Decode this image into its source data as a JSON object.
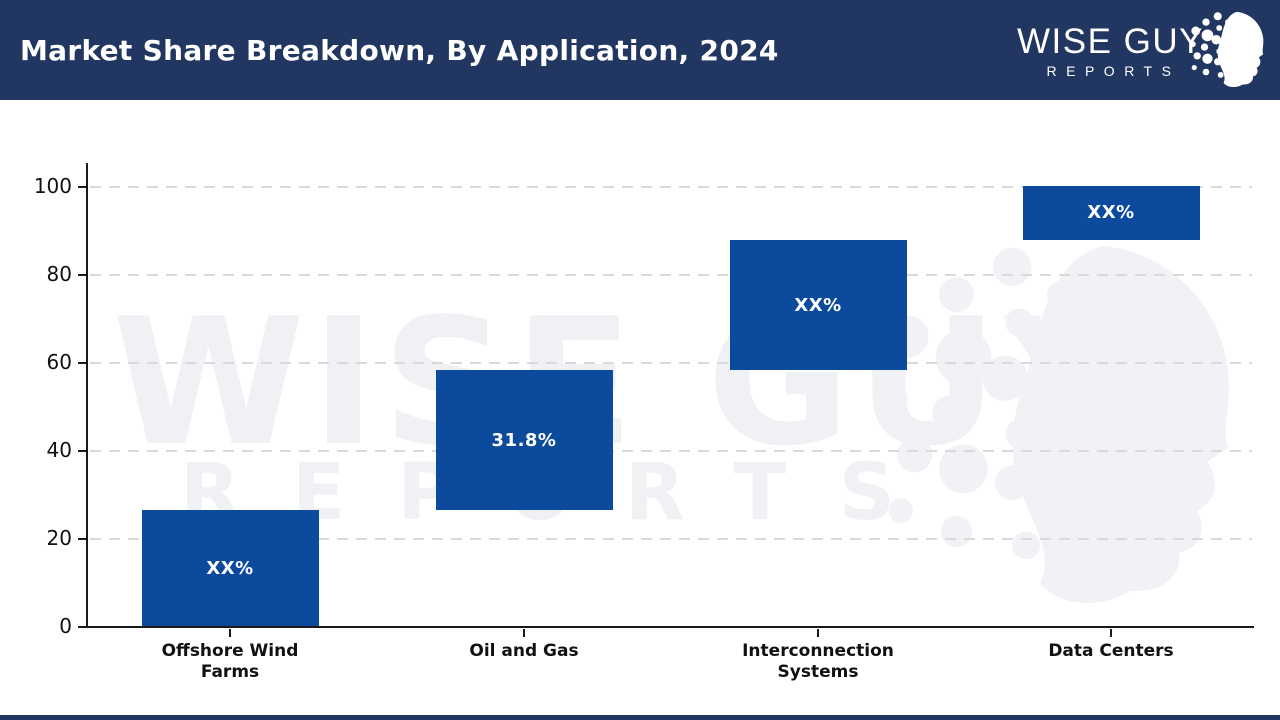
{
  "header": {
    "title": "Market Share Breakdown, By Application, 2024",
    "logo": {
      "wordmark": "WISE GUY",
      "tagline": "REPORTS",
      "icon": "dotted-face-profile"
    }
  },
  "watermark": {
    "wordmark": "WISE GUY",
    "tagline": "REPORTS"
  },
  "colors": {
    "header_bg": "#213761",
    "bar_fill": "#0c4a9e",
    "bar_label": "#ffffff",
    "axis": "#1a1a1a",
    "tick_label": "#111111",
    "gridline": "#d9d9d9",
    "watermark": "#f0f1f4",
    "background": "#ffffff"
  },
  "chart_data": {
    "type": "bar",
    "variant": "floating-segment-waterfall",
    "title": "Market Share Breakdown, By Application, 2024",
    "xlabel": "",
    "ylabel": "",
    "categories": [
      [
        "Offshore Wind",
        "Farms"
      ],
      [
        "Oil and Gas"
      ],
      [
        "Interconnection",
        "Systems"
      ],
      [
        "Data Centers"
      ]
    ],
    "segments": [
      {
        "category": "Offshore Wind Farms",
        "start": 0,
        "end": 26.5,
        "label": "XX%"
      },
      {
        "category": "Oil and Gas",
        "start": 26.5,
        "end": 58.3,
        "label": "31.8%"
      },
      {
        "category": "Interconnection Systems",
        "start": 58.3,
        "end": 88.0,
        "label": "XX%"
      },
      {
        "category": "Data Centers",
        "start": 88.0,
        "end": 100.2,
        "label": "XX%"
      }
    ],
    "yticks": [
      0,
      20,
      40,
      60,
      80,
      100
    ],
    "ylim": [
      0,
      105.5
    ],
    "grid": "horizontal-dashed",
    "legend": "none"
  }
}
